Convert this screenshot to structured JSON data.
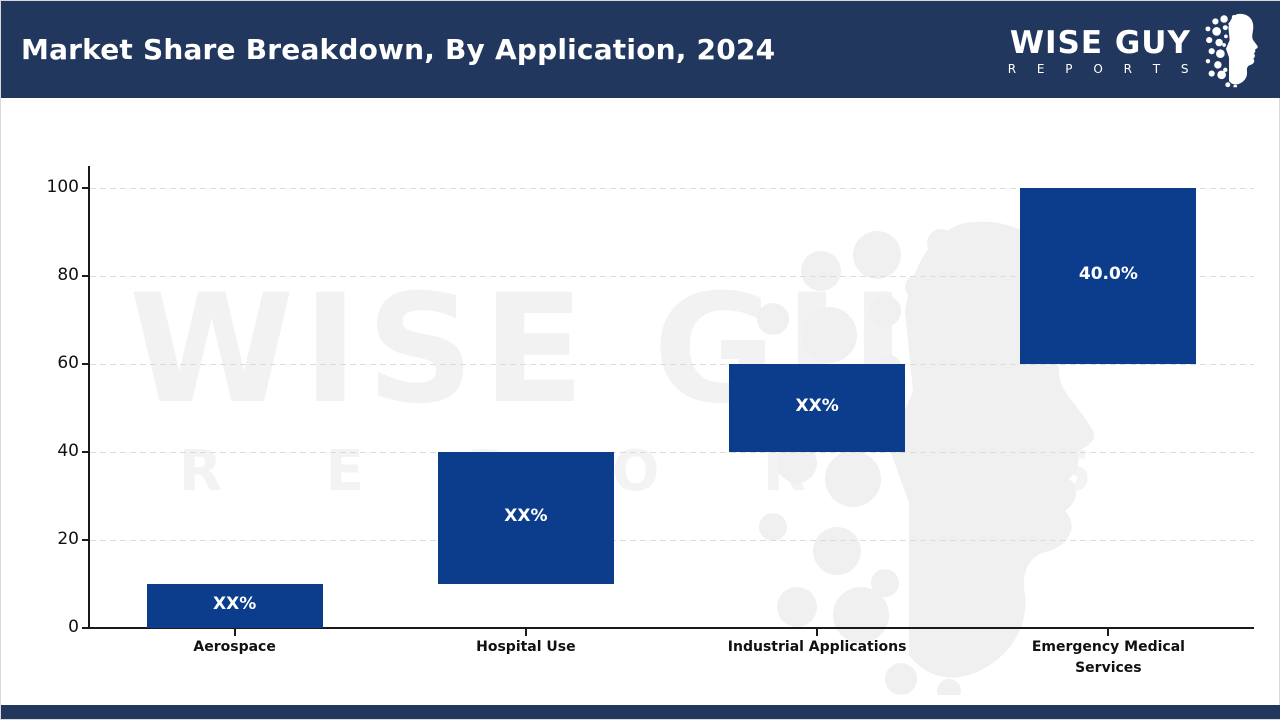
{
  "header": {
    "title": "Market Share Breakdown, By Application, 2024",
    "logo": {
      "line1": "WISE GUY",
      "line2": "R E P O R T S"
    }
  },
  "watermark": {
    "line1": "WISE GUY",
    "line2": "R E P O R T S"
  },
  "colors": {
    "header_bg": "#21375e",
    "footer_bg": "#21375e",
    "bar": "#0c3d8c",
    "bar_label_text": "#ffffff",
    "grid": "#dcdcdc",
    "axis": "#1a1a1a",
    "tick_text": "#111111",
    "watermark": "#f2f2f2",
    "page_border": "#d9d9d9"
  },
  "chart_data": {
    "type": "bar",
    "subtype": "waterfall",
    "title": "Market Share Breakdown, By Application, 2024",
    "categories": [
      "Aerospace",
      "Hospital Use",
      "Industrial Applications",
      "Emergency Medical Services"
    ],
    "segments": [
      {
        "category": "Aerospace",
        "start": 0,
        "end": 10,
        "label": "XX%"
      },
      {
        "category": "Hospital Use",
        "start": 10,
        "end": 40,
        "label": "XX%"
      },
      {
        "category": "Industrial Applications",
        "start": 40,
        "end": 60,
        "label": "XX%"
      },
      {
        "category": "Emergency Medical Services",
        "start": 60,
        "end": 100,
        "label": "40.0%"
      }
    ],
    "yticks": [
      0,
      20,
      40,
      60,
      80,
      100
    ],
    "ylim": [
      0,
      105
    ],
    "xlabel": "",
    "ylabel": "",
    "grid": "horizontal-dashed",
    "legend": "none"
  }
}
